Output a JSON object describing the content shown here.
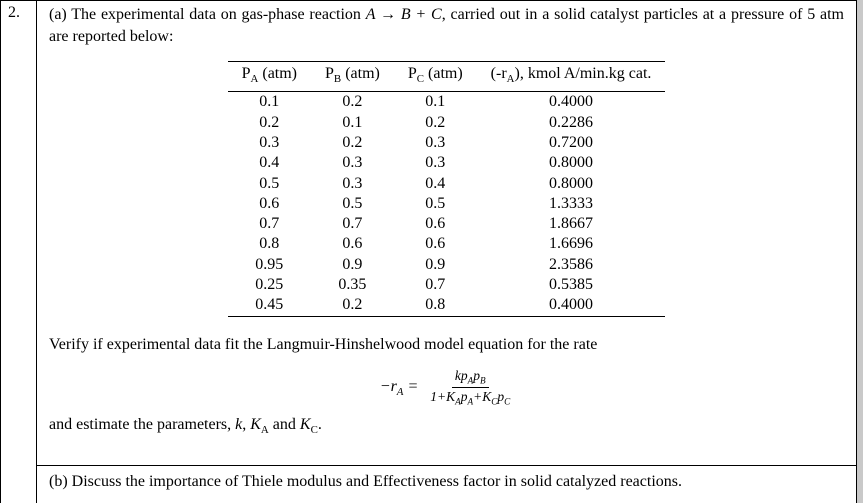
{
  "problem_number": "2.",
  "part_a": {
    "intro_prefix": "(a) The experimental data on gas-phase reaction ",
    "reaction": "A → B + C",
    "intro_suffix": ", carried out in a solid catalyst particles at a pressure of 5 atm are reported below:",
    "verify_text": "Verify if experimental data fit the Langmuir-Hinshelwood model equation for the rate",
    "estimate": {
      "t0": "and estimate the parameters, ",
      "k": "k",
      "t1": ", ",
      "KA_base": "K",
      "KA_sub": "A",
      "t2": " and ",
      "KC_base": "K",
      "KC_sub": "C",
      "t3": "."
    }
  },
  "equation": {
    "lhs_base": "−r",
    "lhs_sub": "A",
    "eq": "=",
    "num": [
      "kp",
      "A",
      "p",
      "B"
    ],
    "den": [
      "1+K",
      "A",
      "p",
      "A",
      "+K",
      "C",
      "p",
      "C"
    ]
  },
  "table": {
    "headers": [
      {
        "base": "P",
        "sub": "A",
        "unit": " (atm)"
      },
      {
        "base": "P",
        "sub": "B",
        "unit": " (atm)"
      },
      {
        "base": "P",
        "sub": "C",
        "unit": " (atm)"
      },
      {
        "base": "(-r",
        "sub": "A",
        "unit": "), kmol A/min.kg cat."
      }
    ],
    "rows": [
      [
        "0.1",
        "0.2",
        "0.1",
        "0.4000"
      ],
      [
        "0.2",
        "0.1",
        "0.2",
        "0.2286"
      ],
      [
        "0.3",
        "0.2",
        "0.3",
        "0.7200"
      ],
      [
        "0.4",
        "0.3",
        "0.3",
        "0.8000"
      ],
      [
        "0.5",
        "0.3",
        "0.4",
        "0.8000"
      ],
      [
        "0.6",
        "0.5",
        "0.5",
        "1.3333"
      ],
      [
        "0.7",
        "0.7",
        "0.6",
        "1.8667"
      ],
      [
        "0.8",
        "0.6",
        "0.6",
        "1.6696"
      ],
      [
        "0.95",
        "0.9",
        "0.9",
        "2.3586"
      ],
      [
        "0.25",
        "0.35",
        "0.7",
        "0.5385"
      ],
      [
        "0.45",
        "0.2",
        "0.8",
        "0.4000"
      ]
    ]
  },
  "part_b": {
    "text": "(b) Discuss the importance of Thiele modulus and Effectiveness factor in solid catalyzed reactions."
  }
}
